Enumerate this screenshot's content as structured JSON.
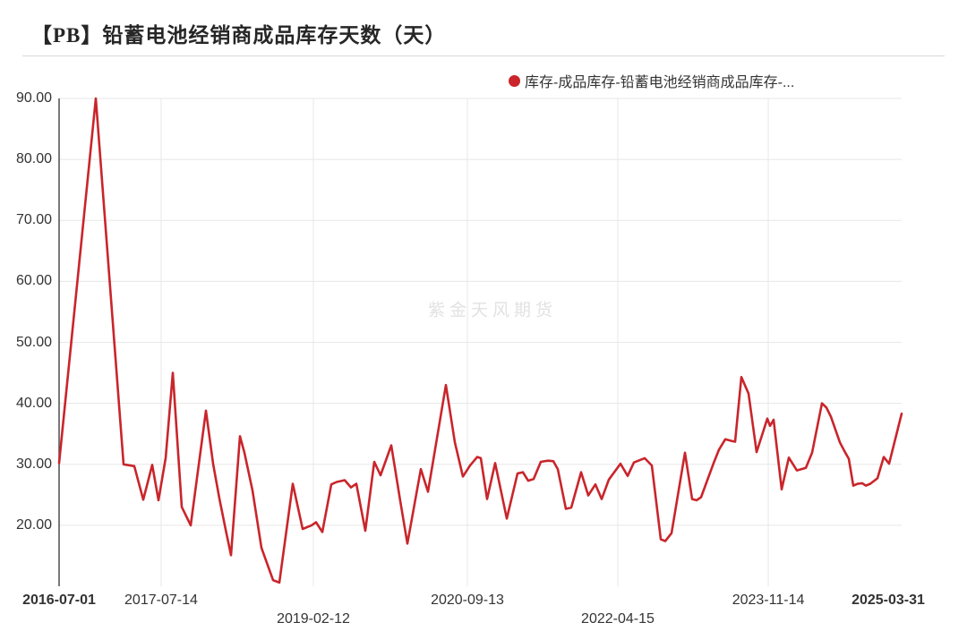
{
  "header": {
    "title": "【PB】铅蓄电池经销商成品库存天数（天）",
    "watermark": "紫金天风期货"
  },
  "legend": {
    "label": "库存-成品库存-铅蓄电池经销商成品库存-...",
    "marker_color": "#c9252b"
  },
  "colors": {
    "line": "#c9252b",
    "grid": "#e7e7e7",
    "axis": "#4d4d4d",
    "text": "#333333",
    "watermark": "#e2e2e2"
  },
  "chart_data": {
    "type": "line",
    "title": "【PB】铅蓄电池经销商成品库存天数（天）",
    "ylabel": "",
    "xlabel": "",
    "grid": true,
    "legend_position": "top-right",
    "y_axis": {
      "min": 10,
      "max": 90,
      "tick_step": 10,
      "tick_labels": [
        "90.00",
        "80.00",
        "70.00",
        "60.00",
        "50.00",
        "40.00",
        "30.00",
        "20.00"
      ]
    },
    "x_ticks": [
      {
        "label": "2016-07-01",
        "pos": 0,
        "bold": true,
        "row": 1
      },
      {
        "label": "2017-07-14",
        "pos": 12.11,
        "bold": false,
        "row": 1
      },
      {
        "label": "2019-02-12",
        "pos": 30.18,
        "bold": false,
        "row": 2
      },
      {
        "label": "2020-09-13",
        "pos": 48.46,
        "bold": false,
        "row": 1
      },
      {
        "label": "2022-04-15",
        "pos": 66.31,
        "bold": false,
        "row": 2
      },
      {
        "label": "2023-11-14",
        "pos": 84.17,
        "bold": false,
        "row": 1
      },
      {
        "label": "2025-03-31",
        "pos": 100,
        "bold": true,
        "row": 1
      }
    ],
    "series": [
      {
        "name": "库存-成品库存-铅蓄电池经销商成品库存",
        "color": "#c9252b",
        "points": [
          [
            0,
            30.2
          ],
          [
            4.36,
            90
          ],
          [
            7.65,
            30
          ],
          [
            8.93,
            29.7
          ],
          [
            9.99,
            24.2
          ],
          [
            11.05,
            29.9
          ],
          [
            11.8,
            24.1
          ],
          [
            12.65,
            31
          ],
          [
            13.5,
            45
          ],
          [
            14.56,
            23
          ],
          [
            15.62,
            20
          ],
          [
            17.43,
            38.8
          ],
          [
            18.28,
            30.1
          ],
          [
            19.02,
            24.4
          ],
          [
            19.77,
            19.3
          ],
          [
            20.4,
            15.1
          ],
          [
            21.47,
            34.6
          ],
          [
            22.0,
            31.9
          ],
          [
            22.95,
            25.7
          ],
          [
            24.02,
            16.3
          ],
          [
            25.4,
            11
          ],
          [
            26.14,
            10.6
          ],
          [
            27.74,
            26.8
          ],
          [
            28.91,
            19.4
          ],
          [
            29.97,
            20
          ],
          [
            30.5,
            20.5
          ],
          [
            31.24,
            18.9
          ],
          [
            32.31,
            26.7
          ],
          [
            32.94,
            27.1
          ],
          [
            33.9,
            27.4
          ],
          [
            34.64,
            26.2
          ],
          [
            35.28,
            26.8
          ],
          [
            36.34,
            19.1
          ],
          [
            37.41,
            30.4
          ],
          [
            38.15,
            28.2
          ],
          [
            39.43,
            33.1
          ],
          [
            40.49,
            24
          ],
          [
            41.34,
            17
          ],
          [
            42.93,
            29.2
          ],
          [
            43.78,
            25.5
          ],
          [
            45.91,
            43
          ],
          [
            46.97,
            33.6
          ],
          [
            47.93,
            28
          ],
          [
            48.78,
            29.8
          ],
          [
            49.63,
            31.2
          ],
          [
            50.05,
            31
          ],
          [
            50.8,
            24.3
          ],
          [
            51.75,
            30.2
          ],
          [
            53.13,
            21.1
          ],
          [
            54.41,
            28.5
          ],
          [
            55.05,
            28.7
          ],
          [
            55.68,
            27.3
          ],
          [
            56.32,
            27.6
          ],
          [
            57.17,
            30.4
          ],
          [
            58.02,
            30.6
          ],
          [
            58.66,
            30.5
          ],
          [
            59.19,
            29.2
          ],
          [
            60.15,
            22.7
          ],
          [
            60.79,
            22.9
          ],
          [
            61.96,
            28.7
          ],
          [
            62.81,
            24.9
          ],
          [
            63.66,
            26.7
          ],
          [
            64.4,
            24.3
          ],
          [
            65.25,
            27.5
          ],
          [
            66.63,
            30.1
          ],
          [
            67.48,
            28.1
          ],
          [
            68.23,
            30.3
          ],
          [
            69.5,
            31
          ],
          [
            70.35,
            29.8
          ],
          [
            71.41,
            17.7
          ],
          [
            71.94,
            17.4
          ],
          [
            72.69,
            18.7
          ],
          [
            74.28,
            31.9
          ],
          [
            75.13,
            24.3
          ],
          [
            75.66,
            24.1
          ],
          [
            76.2,
            24.6
          ],
          [
            77.68,
            30.2
          ],
          [
            78.32,
            32.4
          ],
          [
            79.06,
            34.1
          ],
          [
            79.91,
            33.8
          ],
          [
            80.23,
            33.7
          ],
          [
            80.98,
            44.3
          ],
          [
            81.83,
            41.6
          ],
          [
            82.78,
            32
          ],
          [
            84.06,
            37.5
          ],
          [
            84.38,
            36.3
          ],
          [
            84.8,
            37.3
          ],
          [
            85.76,
            25.9
          ],
          [
            86.61,
            31.1
          ],
          [
            87.57,
            29
          ],
          [
            88.63,
            29.4
          ],
          [
            89.37,
            31.9
          ],
          [
            90.54,
            40
          ],
          [
            91.07,
            39.3
          ],
          [
            91.6,
            37.8
          ],
          [
            92.67,
            33.6
          ],
          [
            93.2,
            32.2
          ],
          [
            93.73,
            30.9
          ],
          [
            94.26,
            26.5
          ],
          [
            94.79,
            26.8
          ],
          [
            95.32,
            26.9
          ],
          [
            95.75,
            26.5
          ],
          [
            96.28,
            26.8
          ],
          [
            97.13,
            27.7
          ],
          [
            97.87,
            31.2
          ],
          [
            98.51,
            30.1
          ],
          [
            100,
            38.3
          ]
        ]
      }
    ]
  }
}
